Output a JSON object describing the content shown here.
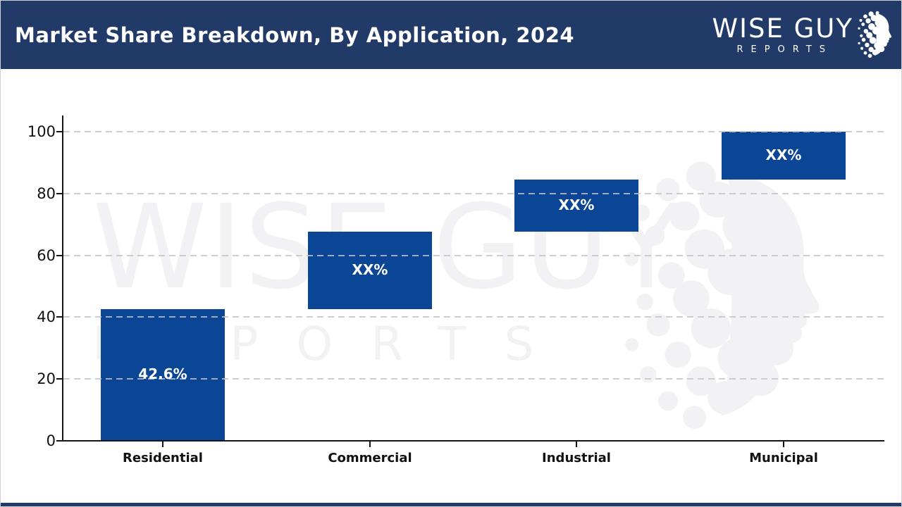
{
  "header": {
    "title": "Market Share Breakdown, By Application, 2024",
    "logo": {
      "line1": "WISE GUY",
      "line2": "REPORTS"
    }
  },
  "watermark": {
    "line1": "WISE GUY",
    "line2": "REPORTS"
  },
  "icons": {
    "logo_face": "dotted-face-profile-icon"
  },
  "colors": {
    "header_bg": "#223a67",
    "footer_bg": "#223a67",
    "bar": "#0a4596",
    "axis": "#151515",
    "grid": "#c3c3c3",
    "watermark": "#f2f2f4",
    "title_text": "#ffffff",
    "bar_label_text": "#ffffff"
  },
  "chart_data": {
    "type": "bar",
    "subtype": "floating-waterfall",
    "title": "Market Share Breakdown, By Application, 2024",
    "xlabel": "",
    "ylabel": "",
    "categories": [
      "Residential",
      "Commercial",
      "Industrial",
      "Municipal"
    ],
    "series": [
      {
        "name": "Market share (%)",
        "segments": [
          {
            "category": "Residential",
            "start": 0,
            "end": 42.6,
            "label": "42.6%"
          },
          {
            "category": "Commercial",
            "start": 42.6,
            "end": 67.6,
            "label": "XX%"
          },
          {
            "category": "Industrial",
            "start": 67.6,
            "end": 84.4,
            "label": "XX%"
          },
          {
            "category": "Municipal",
            "start": 84.4,
            "end": 100,
            "label": "XX%"
          }
        ]
      }
    ],
    "bar_labels": [
      "42.6%",
      "XX%",
      "XX%",
      "XX%"
    ],
    "yticks": [
      0,
      20,
      40,
      60,
      80,
      100
    ],
    "ylim": [
      0,
      105
    ],
    "grid": "horizontal dashed, drawn above bars",
    "legend": "none"
  }
}
